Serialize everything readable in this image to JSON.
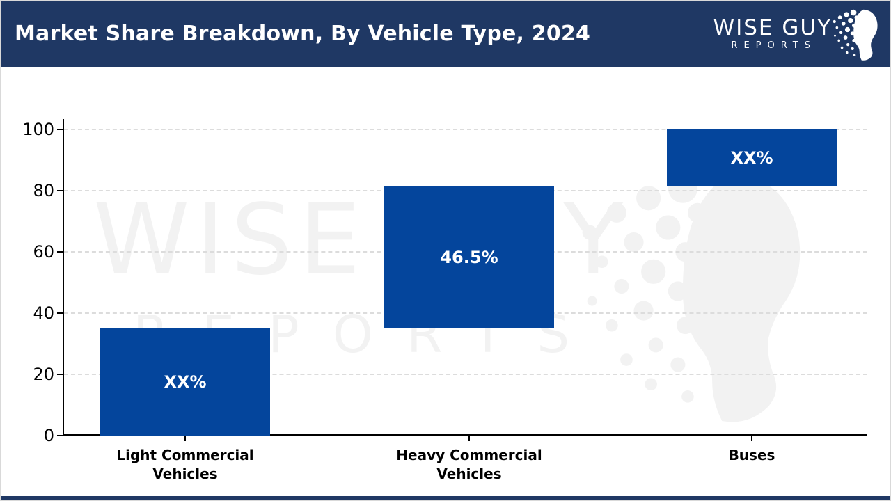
{
  "header": {
    "title": "Market Share Breakdown, By Vehicle Type, 2024",
    "bg_color": "#1F3864",
    "logo": {
      "line1": "WISE GUY",
      "line2": "REPORTS"
    }
  },
  "watermark": {
    "line1": "WISE GUY",
    "line2": "REPORTS"
  },
  "chart_data": {
    "type": "bar",
    "subtype": "floating-stacked-waterfall",
    "title": "Market Share Breakdown, By Vehicle Type, 2024",
    "categories": [
      "Light Commercial Vehicles",
      "Heavy Commercial Vehicles",
      "Buses"
    ],
    "bars": [
      {
        "category_lines": [
          "Light Commercial",
          "Vehicles"
        ],
        "start": 0,
        "end": 35,
        "value_label": "XX%"
      },
      {
        "category_lines": [
          "Heavy Commercial",
          "Vehicles"
        ],
        "start": 35,
        "end": 81.5,
        "value_label": "46.5%"
      },
      {
        "category_lines": [
          "Buses"
        ],
        "start": 81.5,
        "end": 100,
        "value_label": "XX%"
      }
    ],
    "y_ticks": [
      0,
      20,
      40,
      60,
      80,
      100
    ],
    "ylim": [
      0,
      100
    ],
    "xlabel": "",
    "ylabel": "",
    "bar_color": "#04459C",
    "grid": "horizontal-dashed",
    "legend": "none"
  },
  "colors": {
    "header_bg": "#1F3864",
    "footer_bg": "#1F3864",
    "bar_blue": "#04459C",
    "gridline": "#dcdcdc",
    "watermark": "#f2f2f2",
    "axis": "#000000"
  }
}
